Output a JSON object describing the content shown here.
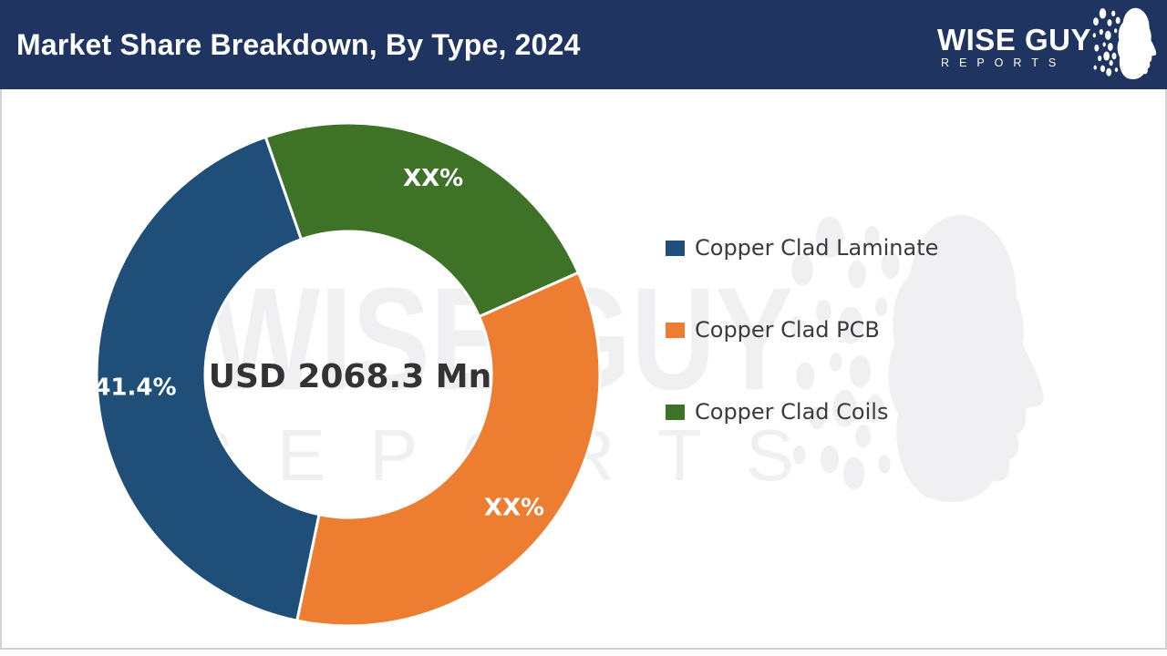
{
  "header": {
    "title": "Market Share Breakdown, By Type, 2024",
    "logo": {
      "line1": "WISE GUY",
      "line2": "REPORTS"
    }
  },
  "watermark": {
    "line1": "WISE GUY",
    "line2": "REPORTS"
  },
  "colors": {
    "header_bg": "#1F3460",
    "page_bg": "#FFFFFF",
    "border": "#D2D2D2",
    "watermark": "#F0F0F3",
    "center_text": "#333333",
    "legend_text": "#3B3B3B"
  },
  "chart_data": {
    "type": "pie",
    "subtype": "donut",
    "title": "Market Share Breakdown, By Type, 2024",
    "center_label": "USD 2068.3 Mn",
    "unit": "percent of market share",
    "start_angle_deg": -19.2,
    "clockwise": true,
    "outer_radius": 276,
    "inner_radius": 157,
    "label_radius_ratio": 0.848,
    "slices": [
      {
        "name": "Copper Clad Coils",
        "value": 23.7,
        "label": "XX%",
        "color": "#3E7227"
      },
      {
        "name": "Copper Clad PCB",
        "value": 34.9,
        "label": "XX%",
        "color": "#ED7D31"
      },
      {
        "name": "Copper Clad Laminate",
        "value": 41.4,
        "label": "41.4%",
        "color": "#1F4E79"
      }
    ],
    "legend": [
      {
        "label": "Copper Clad Laminate",
        "color": "#1F4E79"
      },
      {
        "label": "Copper Clad PCB",
        "color": "#ED7D31"
      },
      {
        "label": "Copper Clad Coils",
        "color": "#3E7227"
      }
    ],
    "legend_position": "right"
  }
}
